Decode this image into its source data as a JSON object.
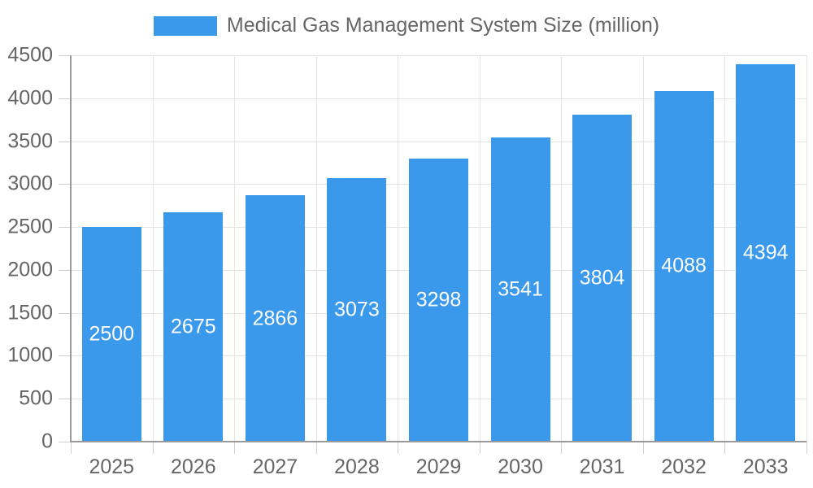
{
  "chart_data": {
    "type": "bar",
    "title": "Medical Gas Management System Size (million)",
    "categories": [
      "2025",
      "2026",
      "2027",
      "2028",
      "2029",
      "2030",
      "2031",
      "2032",
      "2033"
    ],
    "values": [
      2500,
      2675,
      2866,
      3073,
      3298,
      3541,
      3804,
      4088,
      4394
    ],
    "xlabel": "",
    "ylabel": "",
    "ylim": [
      0,
      4500
    ],
    "ytick_step": 500,
    "ytick_labels": [
      "0",
      "500",
      "1000",
      "1500",
      "2000",
      "2500",
      "3000",
      "3500",
      "4000",
      "4500"
    ],
    "grid": "on",
    "legend_position": "top-center",
    "bar_color": "#3b99ec",
    "value_label_color": "#ffffff",
    "axis_text_color": "#666666",
    "gridline_color": "#e4e4e4",
    "axis_line_color": "#9a9a9a"
  }
}
